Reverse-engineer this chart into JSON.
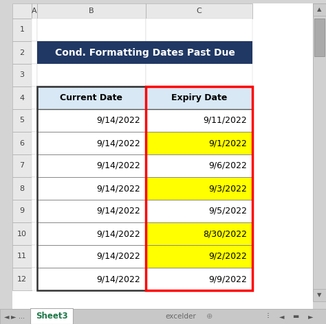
{
  "title": "Cond. Formatting Dates Past Due",
  "title_bg": "#1F3864",
  "title_fg": "#FFFFFF",
  "col_headers": [
    "Current Date",
    "Expiry Date"
  ],
  "header_bg": "#D9E8F5",
  "current_dates": [
    "9/14/2022",
    "9/14/2022",
    "9/14/2022",
    "9/14/2022",
    "9/14/2022",
    "9/14/2022",
    "9/14/2022",
    "9/14/2022"
  ],
  "expiry_dates": [
    "9/11/2022",
    "9/1/2022",
    "9/6/2022",
    "9/3/2022",
    "9/5/2022",
    "8/30/2022",
    "9/2/2022",
    "9/9/2022"
  ],
  "expiry_highlight": [
    false,
    true,
    false,
    true,
    false,
    true,
    true,
    false
  ],
  "highlight_color": "#FFFF00",
  "expiry_col_border": "#FF0000",
  "cell_bg": "#FFFFFF",
  "sheet_tab": "Sheet3",
  "fig_bg": "#FFFFFF",
  "excel_bg": "#D4D4D4",
  "scrollbar_bg": "#D0D0D0",
  "col_header_bg": "#E8E8E8",
  "row_num_bg": "#E8E8E8",
  "tab_bar_bg": "#C8C8C8",
  "tab_active_color": "#1F7849"
}
